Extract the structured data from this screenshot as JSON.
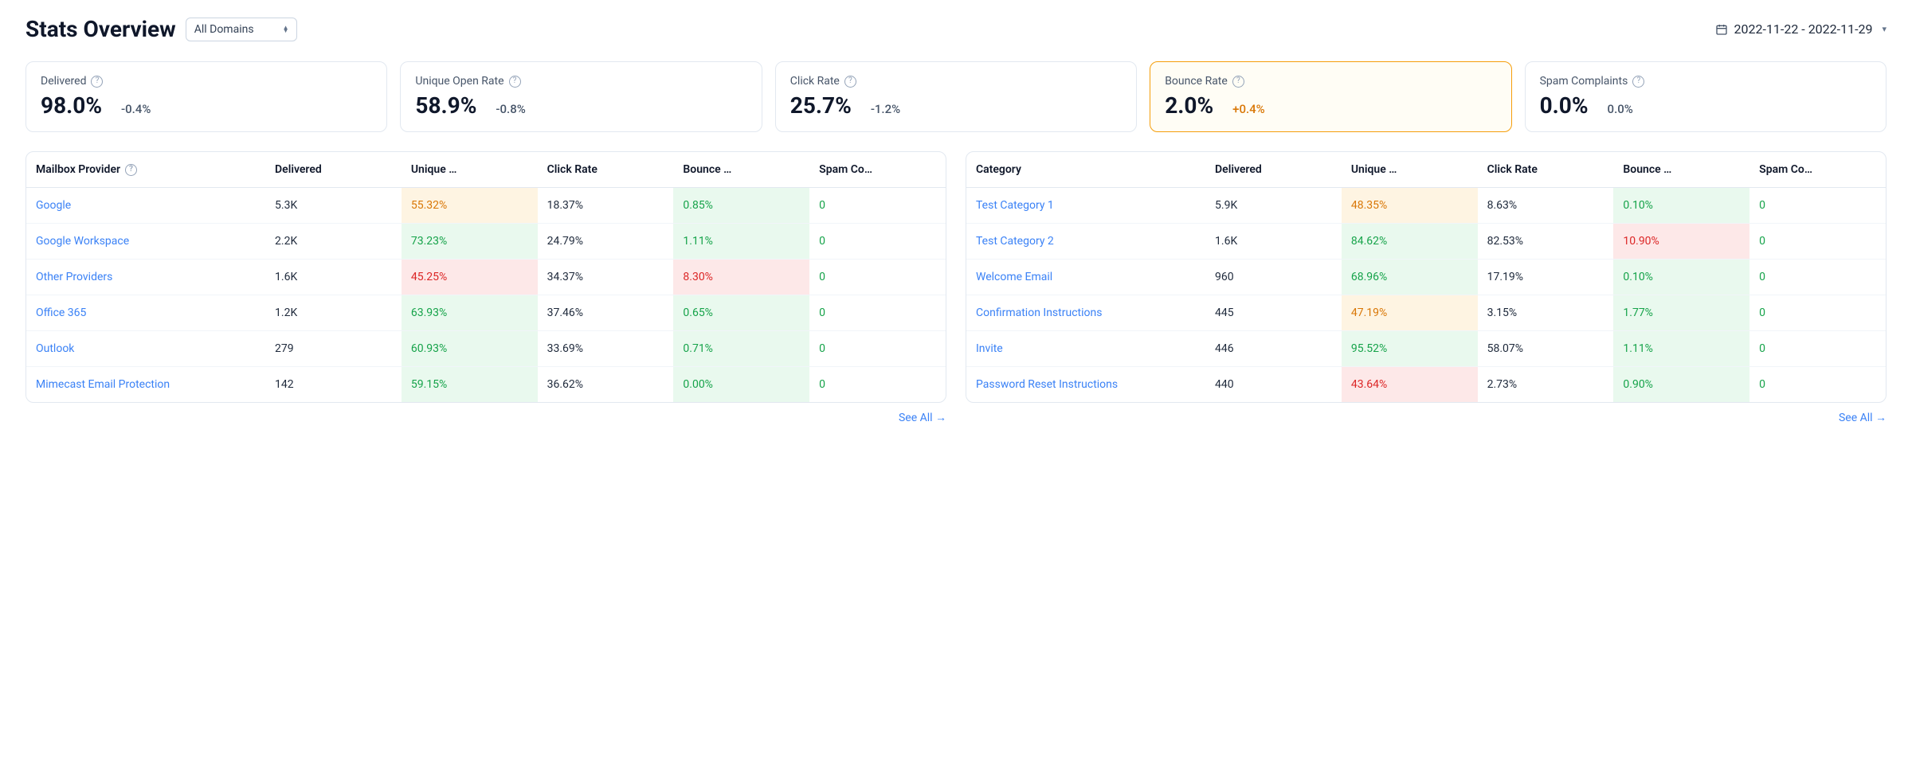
{
  "header": {
    "title": "Stats Overview",
    "domain_selector": "All Domains",
    "date_range": "2022-11-22 - 2022-11-29"
  },
  "cards": [
    {
      "label": "Delivered",
      "value": "98.0%",
      "delta": "-0.4%",
      "delta_class": "delta-neg",
      "highlight": false
    },
    {
      "label": "Unique Open Rate",
      "value": "58.9%",
      "delta": "-0.8%",
      "delta_class": "delta-neg",
      "highlight": false
    },
    {
      "label": "Click Rate",
      "value": "25.7%",
      "delta": "-1.2%",
      "delta_class": "delta-neg",
      "highlight": false
    },
    {
      "label": "Bounce Rate",
      "value": "2.0%",
      "delta": "+0.4%",
      "delta_class": "delta-pos",
      "highlight": true
    },
    {
      "label": "Spam Complaints",
      "value": "0.0%",
      "delta": "0.0%",
      "delta_class": "delta-neg",
      "highlight": false
    }
  ],
  "providers_table": {
    "columns": [
      "Mailbox Provider",
      "Delivered",
      "Unique …",
      "Click Rate",
      "Bounce …",
      "Spam Co…"
    ],
    "see_all": "See All →",
    "rows": [
      {
        "name": "Google",
        "delivered": "5.3K",
        "unique": {
          "v": "55.32%",
          "cls": "cell-yellow-bg"
        },
        "click": "18.37%",
        "bounce": {
          "v": "0.85%",
          "cls": "cell-green-bg"
        },
        "spam": {
          "v": "0",
          "cls": "cell-green-text"
        }
      },
      {
        "name": "Google Workspace",
        "delivered": "2.2K",
        "unique": {
          "v": "73.23%",
          "cls": "cell-green-bg"
        },
        "click": "24.79%",
        "bounce": {
          "v": "1.11%",
          "cls": "cell-green-bg"
        },
        "spam": {
          "v": "0",
          "cls": "cell-green-text"
        }
      },
      {
        "name": "Other Providers",
        "delivered": "1.6K",
        "unique": {
          "v": "45.25%",
          "cls": "cell-red-bg"
        },
        "click": "34.37%",
        "bounce": {
          "v": "8.30%",
          "cls": "cell-red-bg"
        },
        "spam": {
          "v": "0",
          "cls": "cell-green-text"
        }
      },
      {
        "name": "Office 365",
        "delivered": "1.2K",
        "unique": {
          "v": "63.93%",
          "cls": "cell-green-bg"
        },
        "click": "37.46%",
        "bounce": {
          "v": "0.65%",
          "cls": "cell-green-bg"
        },
        "spam": {
          "v": "0",
          "cls": "cell-green-text"
        }
      },
      {
        "name": "Outlook",
        "delivered": "279",
        "unique": {
          "v": "60.93%",
          "cls": "cell-green-bg"
        },
        "click": "33.69%",
        "bounce": {
          "v": "0.71%",
          "cls": "cell-green-bg"
        },
        "spam": {
          "v": "0",
          "cls": "cell-green-text"
        }
      },
      {
        "name": "Mimecast Email Protection",
        "delivered": "142",
        "unique": {
          "v": "59.15%",
          "cls": "cell-green-bg"
        },
        "click": "36.62%",
        "bounce": {
          "v": "0.00%",
          "cls": "cell-green-bg"
        },
        "spam": {
          "v": "0",
          "cls": "cell-green-text"
        }
      }
    ]
  },
  "categories_table": {
    "columns": [
      "Category",
      "Delivered",
      "Unique …",
      "Click Rate",
      "Bounce …",
      "Spam Co…"
    ],
    "see_all": "See All →",
    "rows": [
      {
        "name": "Test Category 1",
        "delivered": "5.9K",
        "unique": {
          "v": "48.35%",
          "cls": "cell-yellow-bg"
        },
        "click": "8.63%",
        "bounce": {
          "v": "0.10%",
          "cls": "cell-green-bg"
        },
        "spam": {
          "v": "0",
          "cls": "cell-green-text"
        }
      },
      {
        "name": "Test Category 2",
        "delivered": "1.6K",
        "unique": {
          "v": "84.62%",
          "cls": "cell-green-bg"
        },
        "click": "82.53%",
        "bounce": {
          "v": "10.90%",
          "cls": "cell-red-bg"
        },
        "spam": {
          "v": "0",
          "cls": "cell-green-text"
        }
      },
      {
        "name": "Welcome Email",
        "delivered": "960",
        "unique": {
          "v": "68.96%",
          "cls": "cell-green-bg"
        },
        "click": "17.19%",
        "bounce": {
          "v": "0.10%",
          "cls": "cell-green-bg"
        },
        "spam": {
          "v": "0",
          "cls": "cell-green-text"
        }
      },
      {
        "name": "Confirmation Instructions",
        "delivered": "445",
        "unique": {
          "v": "47.19%",
          "cls": "cell-yellow-bg"
        },
        "click": "3.15%",
        "bounce": {
          "v": "1.77%",
          "cls": "cell-green-bg"
        },
        "spam": {
          "v": "0",
          "cls": "cell-green-text"
        }
      },
      {
        "name": "Invite",
        "delivered": "446",
        "unique": {
          "v": "95.52%",
          "cls": "cell-green-bg"
        },
        "click": "58.07%",
        "bounce": {
          "v": "1.11%",
          "cls": "cell-green-bg"
        },
        "spam": {
          "v": "0",
          "cls": "cell-green-text"
        }
      },
      {
        "name": "Password Reset Instructions",
        "delivered": "440",
        "unique": {
          "v": "43.64%",
          "cls": "cell-red-bg"
        },
        "click": "2.73%",
        "bounce": {
          "v": "0.90%",
          "cls": "cell-green-bg"
        },
        "spam": {
          "v": "0",
          "cls": "cell-green-text"
        }
      }
    ]
  },
  "colors": {
    "border": "#e2e8f0",
    "accent_orange": "#f59e0b",
    "text_primary": "#0f172a",
    "text_secondary": "#475569",
    "link": "#3b82f6",
    "green": "#16a34a",
    "red": "#dc2626",
    "orange": "#d97706",
    "green_bg": "#e9f9ee",
    "yellow_bg": "#fef4e2",
    "red_bg": "#fde8e8"
  }
}
